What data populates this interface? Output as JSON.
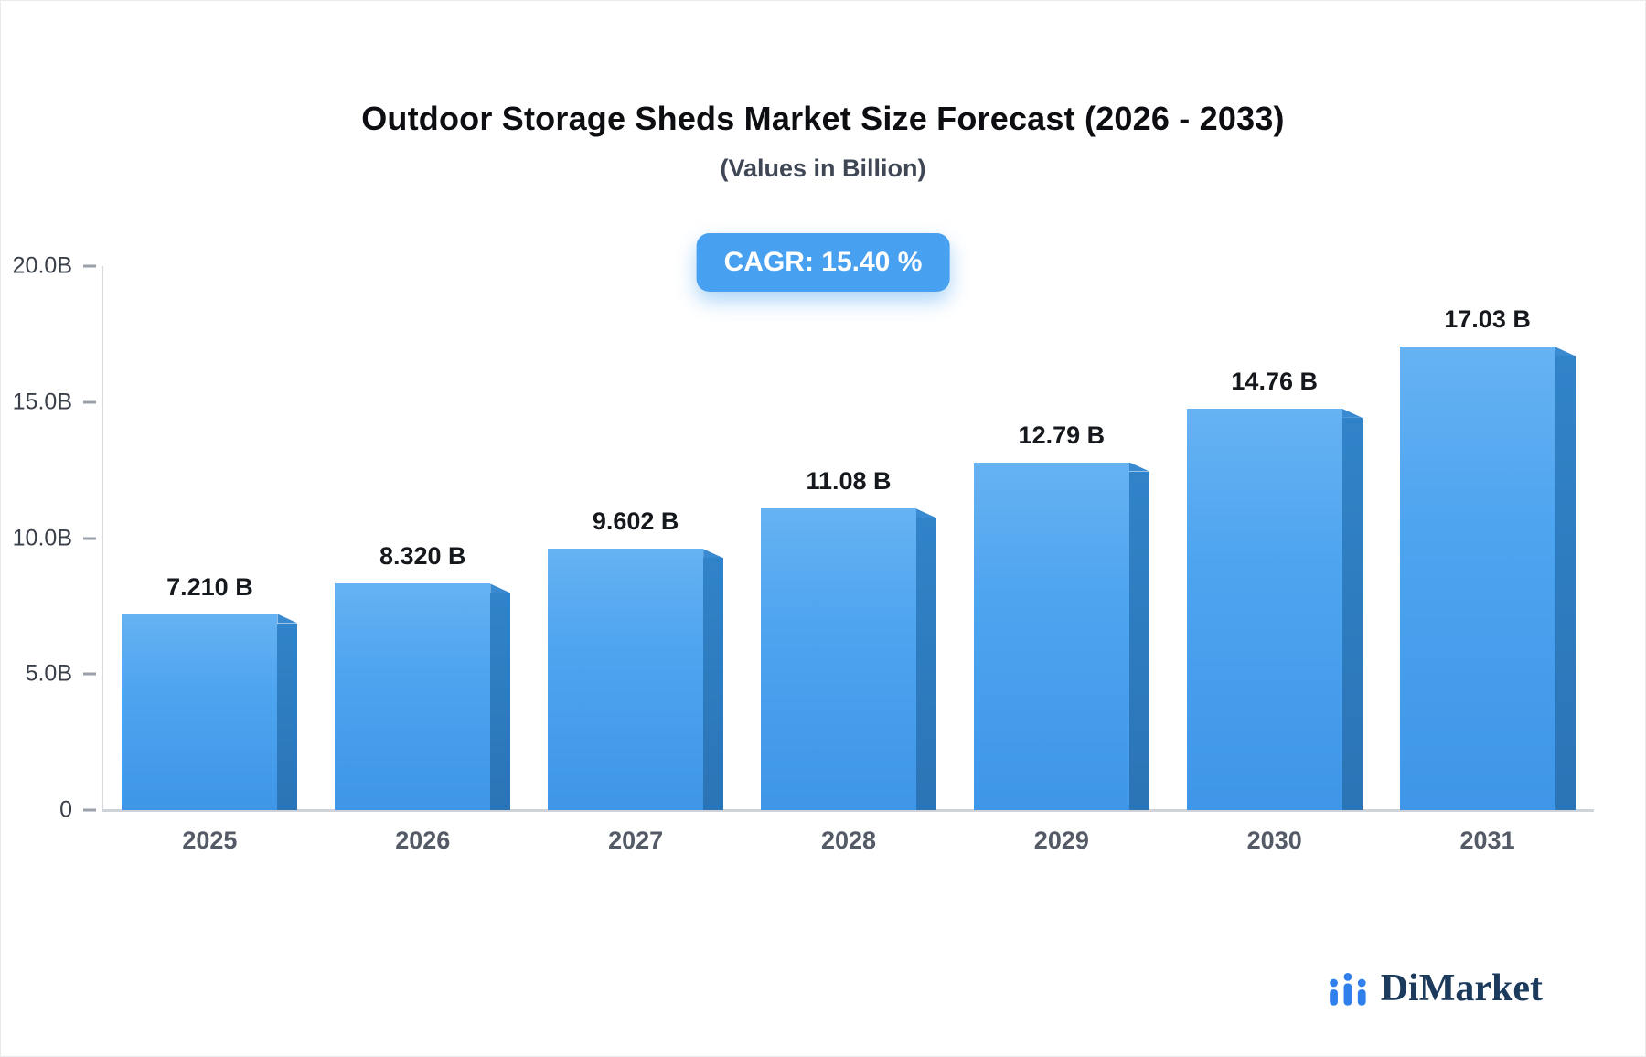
{
  "header": {
    "title": "Outdoor Storage Sheds Market Size Forecast (2026 - 2033)",
    "subtitle": "(Values in Billion)",
    "cagr_badge": "CAGR: 15.40 %"
  },
  "brand": {
    "name": "DiMarket",
    "icon": "bar-chart-logo-icon",
    "icon_color": "#2f80ed",
    "text_color": "#1b3a5c"
  },
  "colors": {
    "bar_front": "#4da4ef",
    "bar_side": "#2b74b6",
    "badge_bg": "#48a0f0",
    "axis": "#cfd3d9"
  },
  "chart_data": {
    "type": "bar",
    "title": "Outdoor Storage Sheds Market Size Forecast (2026 - 2033)",
    "subtitle": "(Values in Billion)",
    "categories": [
      "2025",
      "2026",
      "2027",
      "2028",
      "2029",
      "2030",
      "2031"
    ],
    "values": [
      7.21,
      8.32,
      9.602,
      11.08,
      12.79,
      14.76,
      17.03
    ],
    "labels": [
      "7.210 B",
      "8.320 B",
      "9.602 B",
      "11.08 B",
      "12.79 B",
      "14.76 B",
      "17.03 B"
    ],
    "xlabel": "",
    "ylabel": "",
    "ylim": [
      0,
      20
    ],
    "yticks": [
      {
        "value": 0,
        "label": "0"
      },
      {
        "value": 5,
        "label": "5.0B"
      },
      {
        "value": 10,
        "label": "10.0B"
      },
      {
        "value": 15,
        "label": "15.0B"
      },
      {
        "value": 20,
        "label": "20.0B"
      }
    ],
    "grid": false,
    "legend": false
  }
}
